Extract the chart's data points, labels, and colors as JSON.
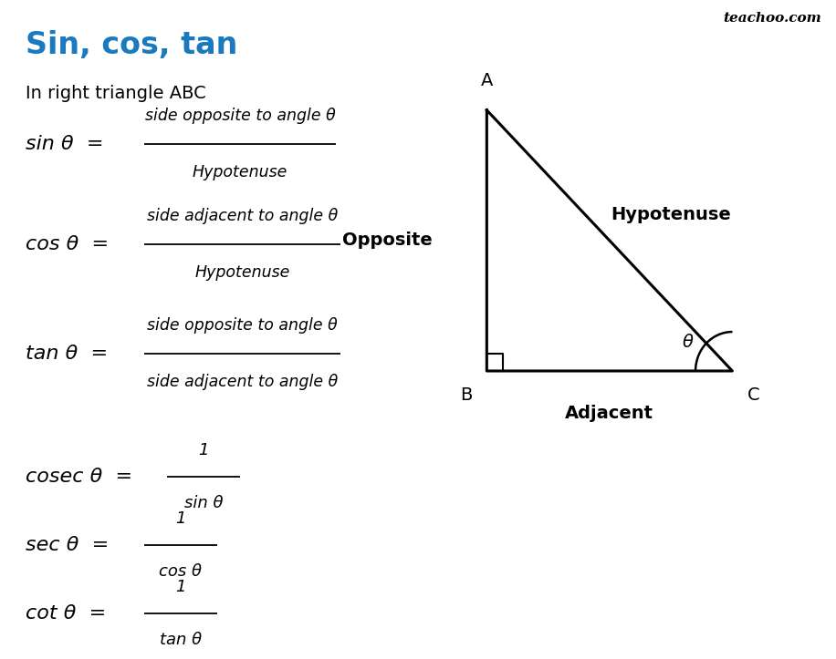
{
  "title": "Sin, cos, tan",
  "title_color": "#1a7abf",
  "title_fontsize": 24,
  "background_color": "#ffffff",
  "watermark": "teachoo.com",
  "intro_text": "In right triangle ABC",
  "triangle": {
    "B": [
      0.0,
      0.0
    ],
    "C": [
      1.0,
      0.0
    ],
    "A": [
      0.0,
      1.0
    ],
    "label_A": "A",
    "label_B": "B",
    "label_C": "C",
    "label_opposite": "Opposite",
    "label_adjacent": "Adjacent",
    "label_hypotenuse": "Hypotenuse",
    "label_theta": "θ"
  }
}
